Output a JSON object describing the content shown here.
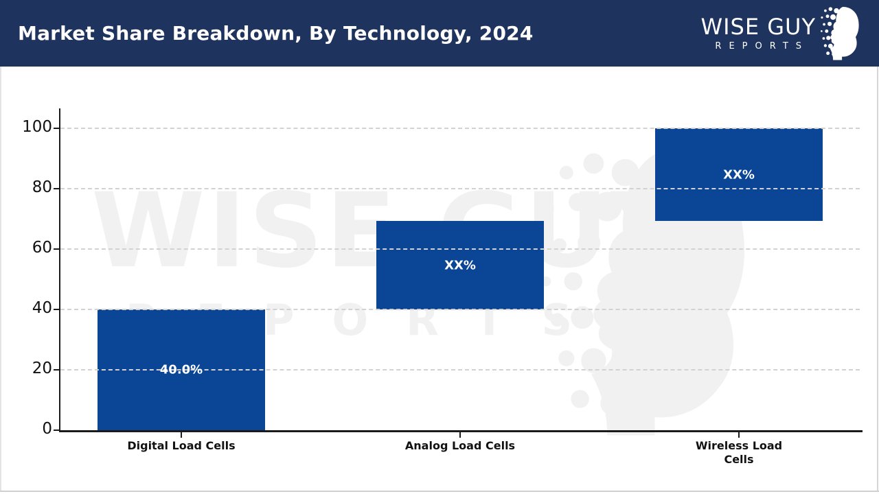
{
  "header": {
    "background": "#1e345e",
    "title": "Market Share Breakdown, By Technology, 2024",
    "logo": {
      "line1": "WISE GUY",
      "line2": "REPORTS",
      "color": "#ffffff",
      "face_icon": "dotted-face-profile"
    }
  },
  "watermark": {
    "line1": "WISE GUY",
    "line2": "REPORTS",
    "color": "#f1f1f1",
    "face_icon": "dotted-face-profile"
  },
  "chart_data": {
    "type": "bar",
    "subtype": "floating-segment-waterfall",
    "title": "Market Share Breakdown, By Technology, 2024",
    "categories": [
      "Digital Load Cells",
      "Analog Load Cells",
      "Wireless Load Cells"
    ],
    "segments": [
      {
        "category": "Digital Load Cells",
        "tick_label": "Digital Load Cells",
        "start": 0,
        "end": 40,
        "value": 40.0,
        "label": "40.0%"
      },
      {
        "category": "Analog Load Cells",
        "tick_label": "Analog Load Cells",
        "start": 40,
        "end": 69.3,
        "value": 29.3,
        "label": "XX%"
      },
      {
        "category": "Wireless Load Cells",
        "tick_label": "Wireless Load\nCells",
        "start": 69.3,
        "end": 100,
        "value": 30.7,
        "label": "XX%"
      }
    ],
    "xlabel": "",
    "ylabel": "",
    "ylim": [
      0,
      100
    ],
    "yticks": [
      0,
      20,
      40,
      60,
      80,
      100
    ],
    "grid": {
      "axis": "y",
      "style": "dashed",
      "color": "#d2d2d2",
      "drawn_over_bars": true
    },
    "bar_color": "#0a4596",
    "bar_label_color": "#ffffff",
    "axis_color": "#1a1a1a",
    "legend": null
  }
}
